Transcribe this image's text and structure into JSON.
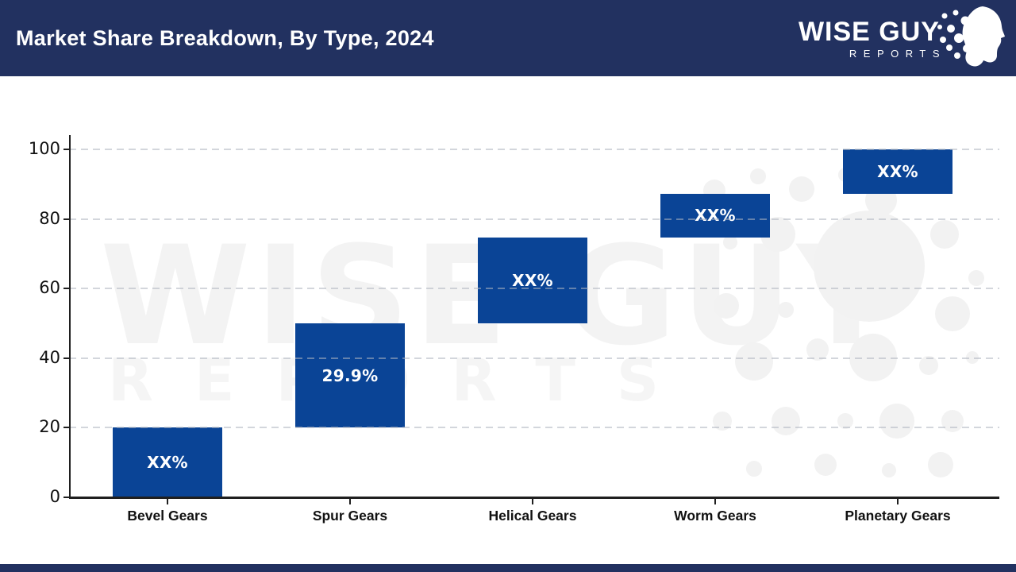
{
  "header": {
    "title": "Market Share Breakdown, By Type, 2024",
    "bg_color": "#223160",
    "logo": {
      "wordmark": "WISE GUY",
      "subtitle": "REPORTS"
    }
  },
  "watermark": {
    "line1": "WISE GUY",
    "line2": "REPORTS"
  },
  "chart_data": {
    "type": "bar",
    "subtype": "waterfall",
    "title": "Market Share Breakdown, By Type, 2024",
    "categories": [
      "Bevel Gears",
      "Spur Gears",
      "Helical Gears",
      "Worm Gears",
      "Planetary Gears"
    ],
    "bars": [
      {
        "category": "Bevel Gears",
        "start": 0,
        "end": 20,
        "size": 20,
        "label": "XX%"
      },
      {
        "category": "Spur Gears",
        "start": 20,
        "end": 49.9,
        "size": 29.9,
        "label": "29.9%"
      },
      {
        "category": "Helical Gears",
        "start": 49.9,
        "end": 74.6,
        "size": 24.7,
        "label": "XX%"
      },
      {
        "category": "Worm Gears",
        "start": 74.6,
        "end": 87.3,
        "size": 12.7,
        "label": "XX%"
      },
      {
        "category": "Planetary Gears",
        "start": 87.3,
        "end": 100,
        "size": 12.7,
        "label": "XX%"
      }
    ],
    "yticks": [
      0,
      20,
      40,
      60,
      80,
      100
    ],
    "ylim": [
      0,
      104
    ],
    "xlabel": "",
    "ylabel": "",
    "grid": "horizontal dashed, drawn over bars",
    "legend_position": "none",
    "bar_color": "#0a4496",
    "bar_label_color": "#ffffff",
    "axis_color": "#1f1f1f"
  },
  "footer": {
    "bg_color": "#223160"
  }
}
